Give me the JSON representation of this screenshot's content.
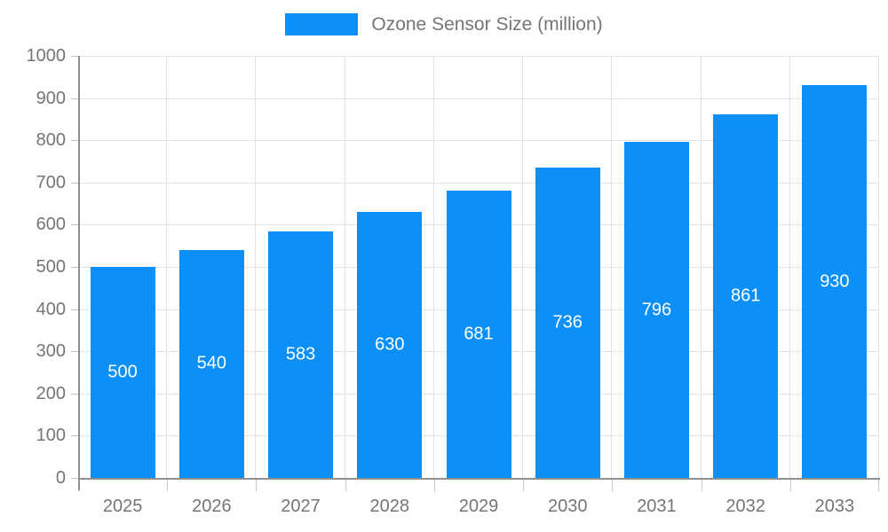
{
  "chart_data": {
    "type": "bar",
    "title": "Ozone Sensor Size (million)",
    "categories": [
      "2025",
      "2026",
      "2027",
      "2028",
      "2029",
      "2030",
      "2031",
      "2032",
      "2033"
    ],
    "values": [
      500,
      540,
      583,
      630,
      681,
      736,
      796,
      861,
      930
    ],
    "xlabel": "",
    "ylabel": "",
    "ylim": [
      0,
      1000
    ],
    "ytick_step": 100,
    "yticks": [
      "0",
      "100",
      "200",
      "300",
      "400",
      "500",
      "600",
      "700",
      "800",
      "900",
      "1000"
    ],
    "legend_position": "top-center",
    "grid": true,
    "value_labels": "centered-inside-bars",
    "colors": {
      "bar": "#0a90f8",
      "grid": "#e3e3e3",
      "axis": "#909090",
      "tick": "#c4c4c4",
      "text": "#757575",
      "value_label": "#ffffff",
      "background": "#ffffff"
    }
  }
}
